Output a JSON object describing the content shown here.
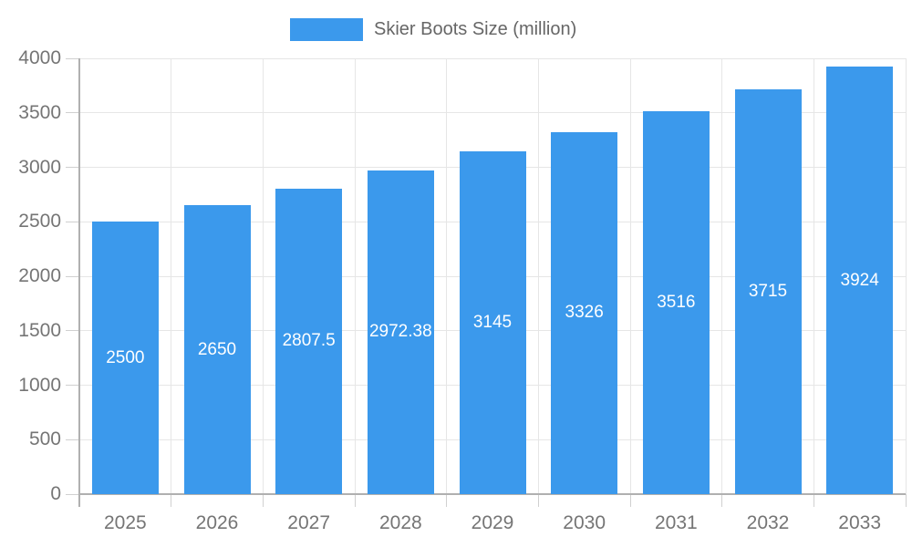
{
  "legend": {
    "label": "Skier Boots Size (million)"
  },
  "colors": {
    "bar": "#3B99EC",
    "grid": "#e6e6e6",
    "axis": "#b0b0b0",
    "tick": "#d0d0d0",
    "axis_label": "#757575",
    "legend_label": "#666666",
    "value_label": "#ffffff",
    "background": "#ffffff"
  },
  "chart_data": {
    "type": "bar",
    "title": "Skier Boots Size (million)",
    "categories": [
      "2025",
      "2026",
      "2027",
      "2028",
      "2029",
      "2030",
      "2031",
      "2032",
      "2033"
    ],
    "series": [
      {
        "name": "Skier Boots Size (million)",
        "values": [
          2500,
          2650,
          2807.5,
          2972.38,
          3145,
          3326,
          3516,
          3715,
          3924
        ]
      }
    ],
    "value_labels": [
      "2500",
      "2650",
      "2807.5",
      "2972.38",
      "3145",
      "3326",
      "3516",
      "3715",
      "3924"
    ],
    "xlabel": "",
    "ylabel": "",
    "ylim": [
      0,
      4000
    ],
    "yticks": [
      0,
      500,
      1000,
      1500,
      2000,
      2500,
      3000,
      3500,
      4000
    ],
    "grid": true,
    "legend_position": "top-center",
    "value_label_position": "inside-center"
  }
}
